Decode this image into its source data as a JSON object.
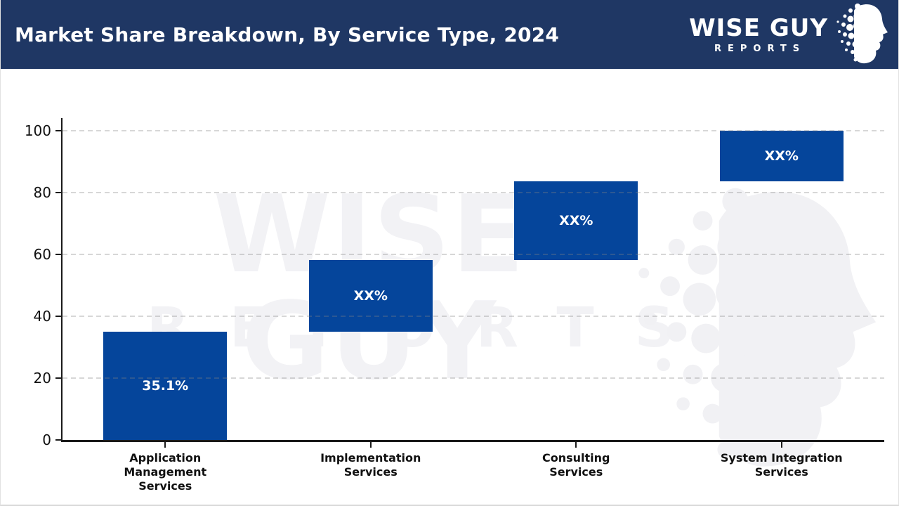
{
  "header": {
    "title": "Market Share Breakdown, By Service Type, 2024",
    "logo": {
      "line1": "WISE GUY",
      "line2": "REPORTS"
    }
  },
  "watermark": {
    "line1": "WISE GUY",
    "line2": "REPORTS"
  },
  "colors": {
    "header_bg": "#1f3764",
    "bar": "#05459b",
    "bar_label": "#ffffff",
    "axis": "#1a1a1a",
    "grid": "rgba(130,130,130,0.32)",
    "watermark": "#f2f2f5"
  },
  "chart_data": {
    "type": "bar",
    "subtype": "waterfall-stacked-breakdown",
    "title": "Market Share Breakdown, By Service Type, 2024",
    "xlabel": "",
    "ylabel": "",
    "ylim": [
      0,
      100
    ],
    "yticks": [
      0,
      20,
      40,
      60,
      80,
      100
    ],
    "grid": "horizontal-dashed",
    "legend": "none",
    "categories": [
      "Application\nManagement\nServices",
      "Implementation\nServices",
      "Consulting\nServices",
      "System Integration\nServices"
    ],
    "segments": [
      {
        "category": "Application Management Services",
        "start": 0,
        "end": 35.1,
        "label": "35.1%"
      },
      {
        "category": "Implementation Services",
        "start": 35.1,
        "end": 58.2,
        "label": "XX%"
      },
      {
        "category": "Consulting Services",
        "start": 58.2,
        "end": 83.7,
        "label": "XX%"
      },
      {
        "category": "System Integration Services",
        "start": 83.7,
        "end": 100,
        "label": "XX%"
      }
    ]
  }
}
